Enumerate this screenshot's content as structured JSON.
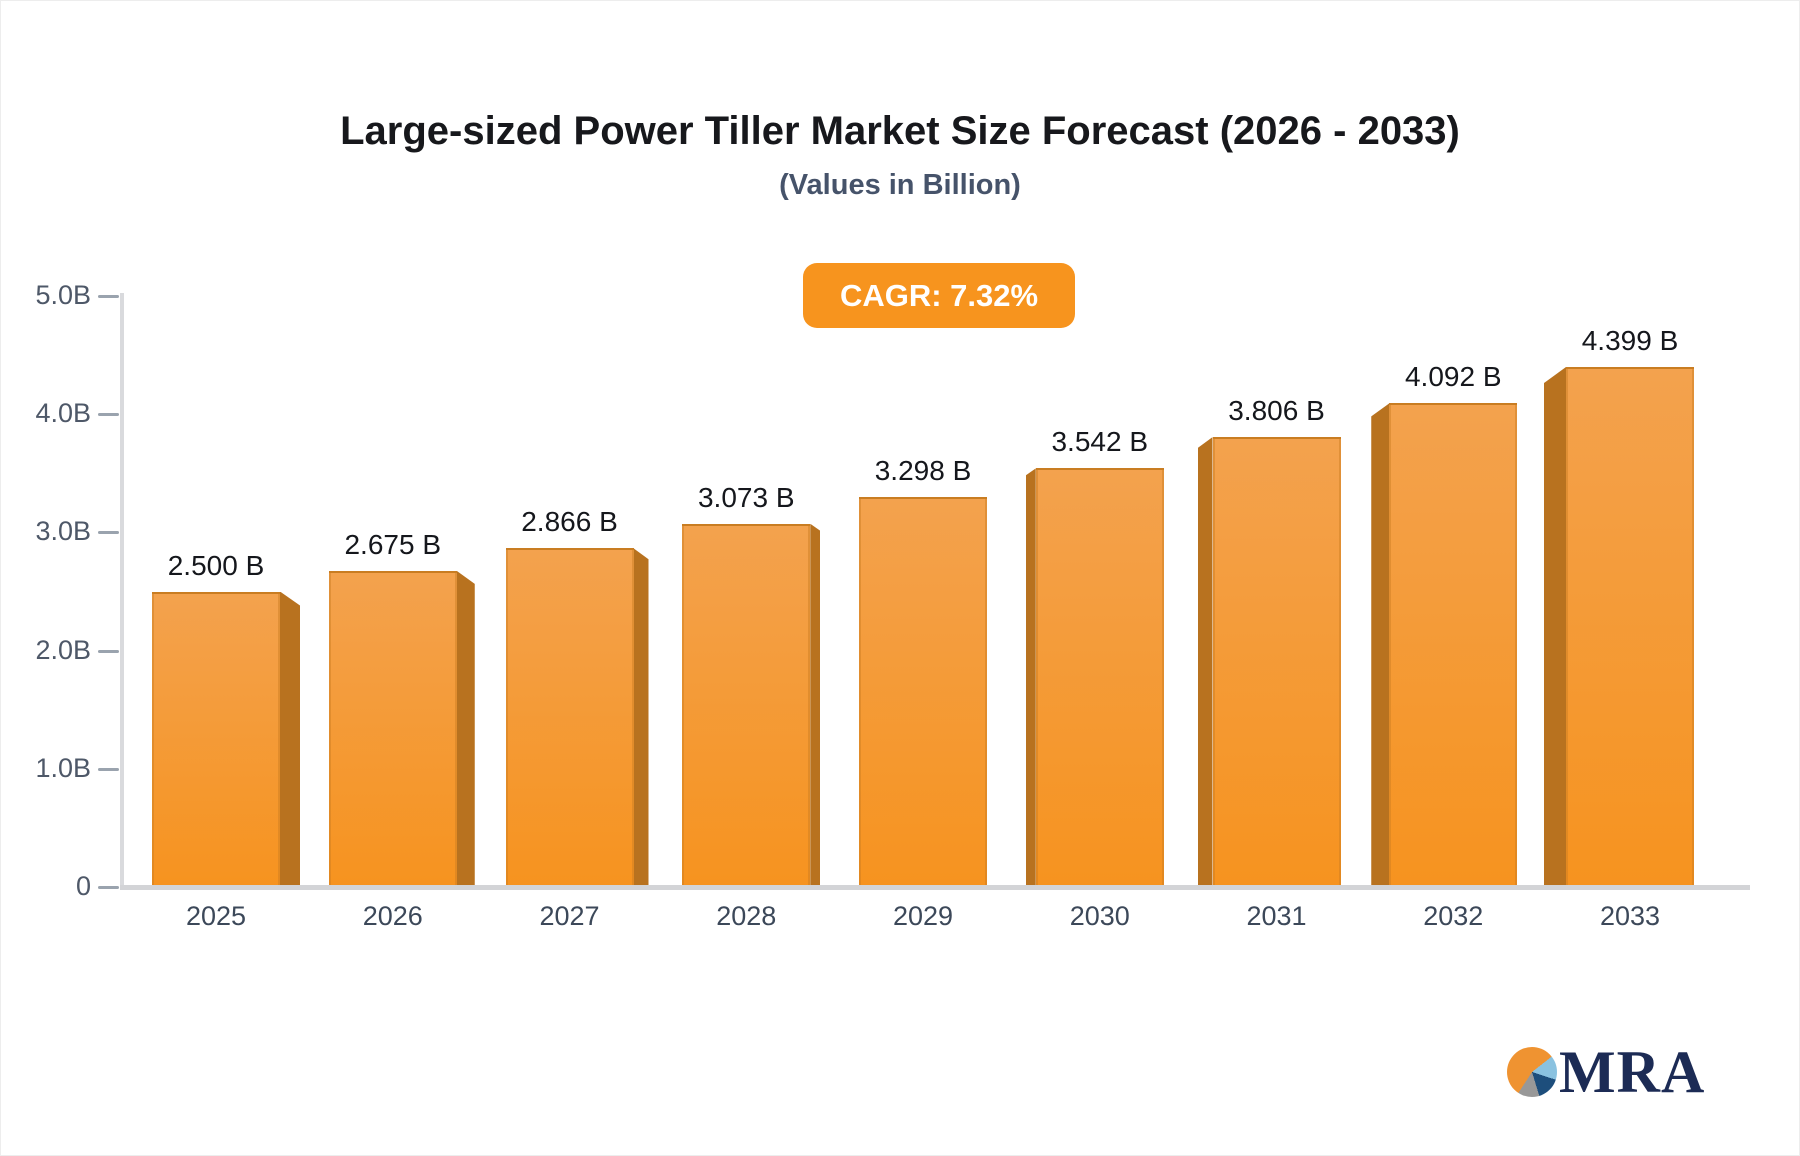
{
  "title": "Large-sized Power Tiller Market Size Forecast (2026 - 2033)",
  "subtitle": "(Values in Billion)",
  "badge": {
    "label": "CAGR: 7.32%",
    "bg_color": "#f7941e"
  },
  "chart_data": {
    "type": "bar",
    "title": "Large-sized Power Tiller Market Size Forecast (2026 - 2033)",
    "subtitle": "(Values in Billion)",
    "categories": [
      "2025",
      "2026",
      "2027",
      "2028",
      "2029",
      "2030",
      "2031",
      "2032",
      "2033"
    ],
    "values": [
      2.5,
      2.675,
      2.866,
      3.073,
      3.298,
      3.542,
      3.806,
      4.092,
      4.399
    ],
    "value_labels": [
      "2.500 B",
      "2.675 B",
      "2.866 B",
      "3.073 B",
      "3.298 B",
      "3.542 B",
      "3.806 B",
      "4.092 B",
      "4.399 B"
    ],
    "yticks": [
      "0",
      "1.0B",
      "2.0B",
      "3.0B",
      "4.0B",
      "5.0B"
    ],
    "ylim": [
      0,
      5
    ],
    "grid": false,
    "legend": "none",
    "cagr": "7.32%",
    "bar_color_top": "#f3a24e",
    "bar_color_bottom": "#f6931f",
    "bar_side_color": "#b8721f",
    "bar_edge_color": "#c97d22"
  },
  "logo": {
    "text": "MRA"
  }
}
